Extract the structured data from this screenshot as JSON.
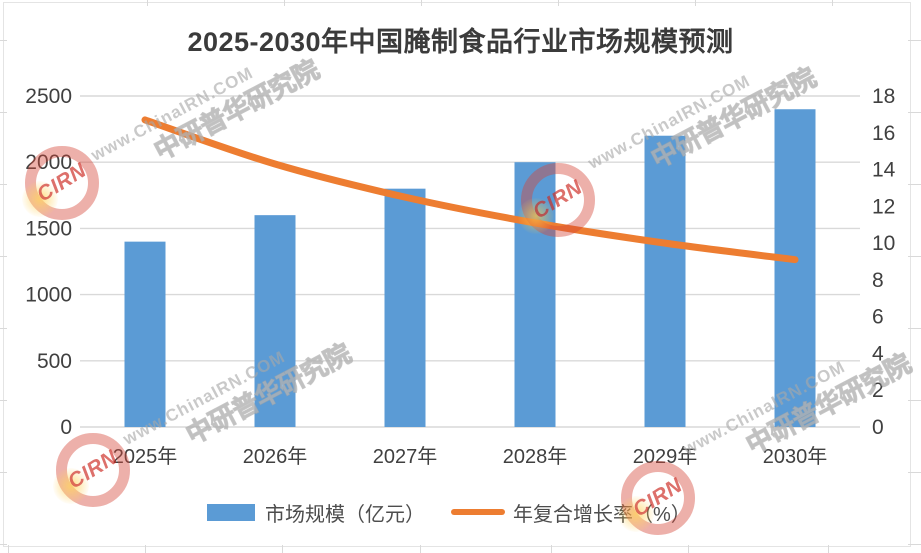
{
  "title": "2025-2030年中国腌制食品行业市场规模预测",
  "legend": {
    "items": [
      {
        "label": "市场规模（亿元）"
      },
      {
        "label": "年复合增长率（%）"
      }
    ]
  },
  "watermark": {
    "url_text": "www.ChinaIRN.COM",
    "org_text": "中研普华研究院",
    "badge_text": "CIRN"
  },
  "colors": {
    "bar": "#5B9BD5",
    "line": "#ED7D31",
    "title_text": "#3B3B3B",
    "axis_text": "#404040",
    "gridline": "#D9D9D9",
    "badge_red": "#D64538",
    "watermark_gray": "#A8A8A8"
  },
  "chart_data": {
    "type": "bar",
    "subtype": "combo-bar-line",
    "title": "2025-2030年中国腌制食品行业市场规模预测",
    "categories": [
      "2025年",
      "2026年",
      "2027年",
      "2028年",
      "2029年",
      "2030年"
    ],
    "series": [
      {
        "name": "市场规模（亿元）",
        "type": "bar",
        "axis": "left",
        "color": "#5B9BD5",
        "values": [
          1400,
          1600,
          1800,
          2000,
          2200,
          2400
        ]
      },
      {
        "name": "年复合增长率（%）",
        "type": "line",
        "axis": "right",
        "color": "#ED7D31",
        "values": [
          16.7,
          14.3,
          12.5,
          11.1,
          10.0,
          9.1
        ]
      }
    ],
    "left_axis": {
      "min": 0,
      "max": 2500,
      "step": 500,
      "ticks": [
        "0",
        "500",
        "1000",
        "1500",
        "2000",
        "2500"
      ]
    },
    "right_axis": {
      "min": 0,
      "max": 18,
      "step": 2,
      "ticks": [
        "0",
        "2",
        "4",
        "6",
        "8",
        "10",
        "12",
        "14",
        "16",
        "18"
      ]
    },
    "grid": true,
    "legend_position": "bottom"
  }
}
